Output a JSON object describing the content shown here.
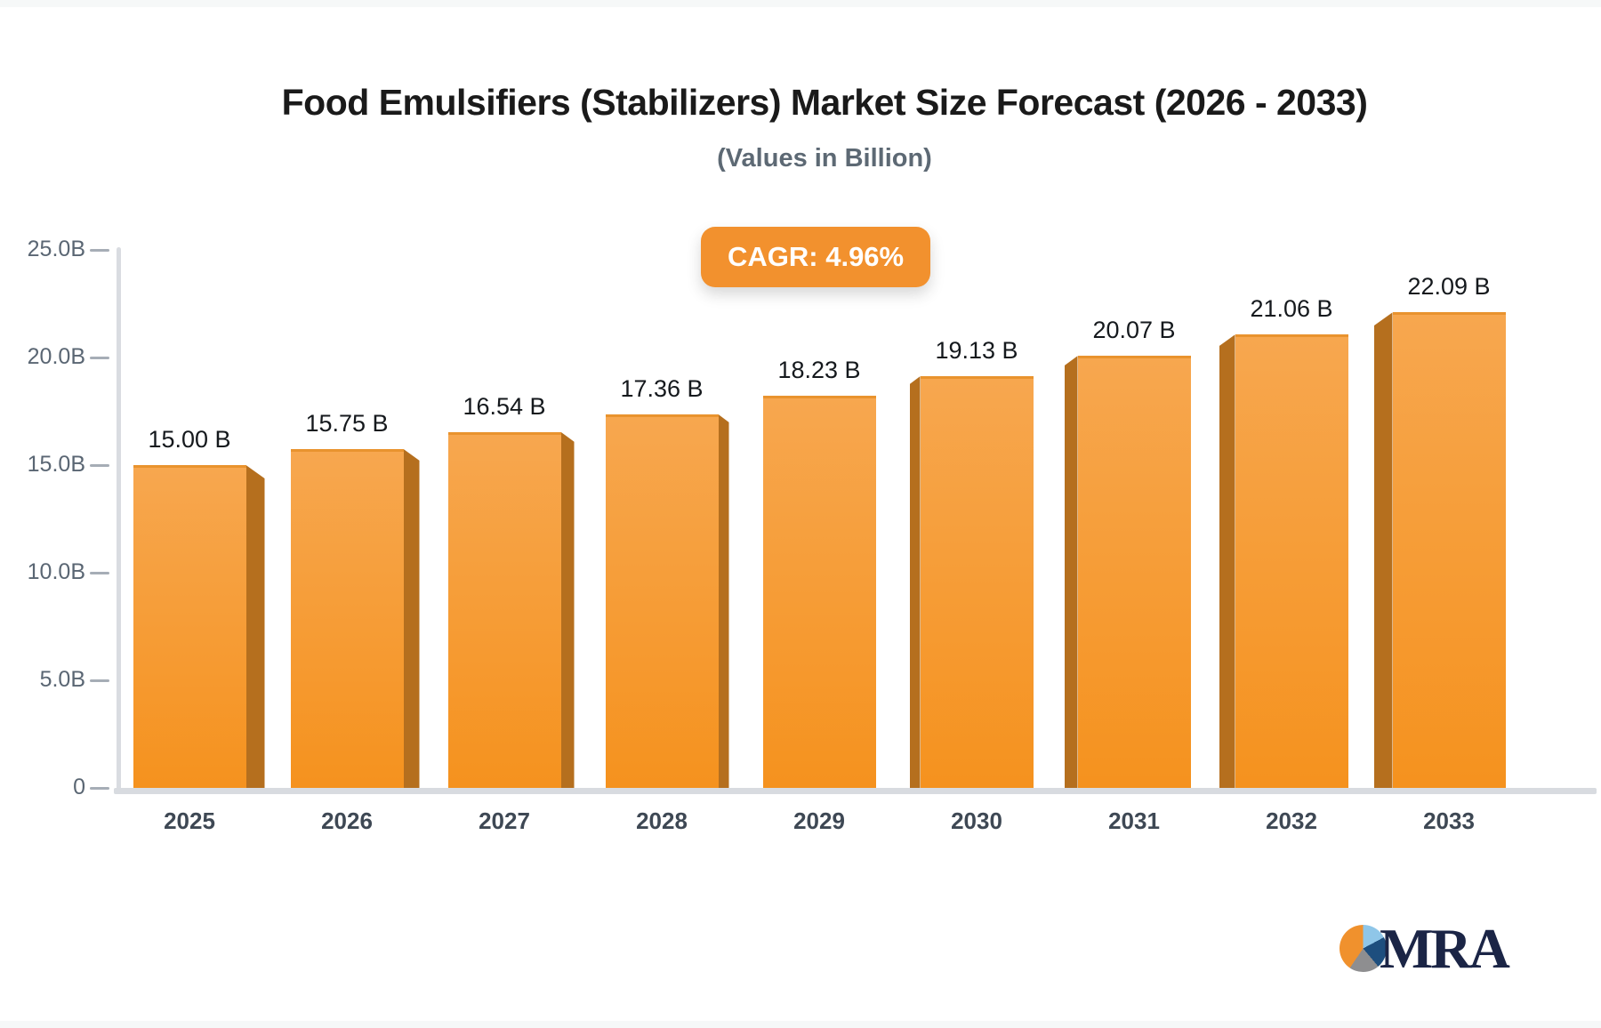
{
  "header": {
    "title": "Food Emulsifiers (Stabilizers) Market Size Forecast (2026 - 2033)",
    "subtitle": "(Values in Billion)"
  },
  "badge": {
    "label": "CAGR: 4.96%",
    "bg_color": "#f2912e",
    "text_color": "#ffffff"
  },
  "chart_data": {
    "type": "bar",
    "title": "Food Emulsifiers (Stabilizers) Market Size Forecast (2026 - 2033)",
    "subtitle": "(Values in Billion)",
    "xlabel": "",
    "ylabel": "",
    "ylim": [
      0,
      25
    ],
    "grid": false,
    "legend": "none",
    "categories": [
      "2025",
      "2026",
      "2027",
      "2028",
      "2029",
      "2030",
      "2031",
      "2032",
      "2033"
    ],
    "values": [
      15.0,
      15.75,
      16.54,
      17.36,
      18.23,
      19.13,
      20.07,
      21.06,
      22.09
    ],
    "value_labels": [
      "15.00 B",
      "15.75 B",
      "16.54 B",
      "17.36 B",
      "18.23 B",
      "19.13 B",
      "20.07 B",
      "21.06 B",
      "22.09 B"
    ],
    "yticks": [
      {
        "value": 0,
        "label": "0"
      },
      {
        "value": 5,
        "label": "5.0B"
      },
      {
        "value": 10,
        "label": "10.0B"
      },
      {
        "value": 15,
        "label": "15.0B"
      },
      {
        "value": 20,
        "label": "20.0B"
      },
      {
        "value": 25,
        "label": "25.0B"
      }
    ],
    "bar_color_top": "#f7a74f",
    "bar_color_bottom": "#f5921e",
    "bar_top_edge_color": "#e9932e",
    "bar_side_color": "#b56f1e",
    "cagr": "4.96%"
  },
  "logo": {
    "text": "MRA",
    "text_color": "#1b2546",
    "pie_slices": [
      {
        "name": "light-blue",
        "color": "#8fc6e8",
        "from": 14,
        "to": 62
      },
      {
        "name": "navy",
        "color": "#1d4e7e",
        "from": 62,
        "to": 140
      },
      {
        "name": "gray",
        "color": "#8e8e90",
        "from": 140,
        "to": 214
      },
      {
        "name": "orange",
        "color": "#f0912d",
        "from": 214,
        "to": 374
      }
    ]
  }
}
